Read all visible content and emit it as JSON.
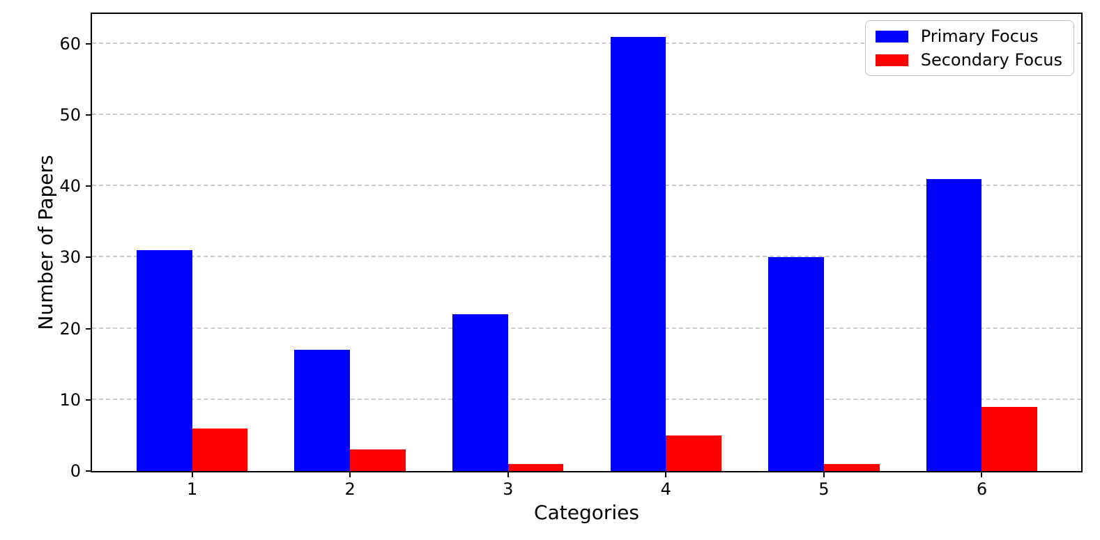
{
  "chart_data": {
    "type": "bar",
    "title": "",
    "xlabel": "Categories",
    "ylabel": "Number of Papers",
    "categories": [
      "1",
      "2",
      "3",
      "4",
      "5",
      "6"
    ],
    "series": [
      {
        "name": "Primary Focus",
        "color": "#0000ff",
        "values": [
          31,
          17,
          22,
          61,
          30,
          41
        ]
      },
      {
        "name": "Secondary Focus",
        "color": "#ff0000",
        "values": [
          6,
          3,
          1,
          5,
          1,
          9
        ]
      }
    ],
    "yticks": [
      0,
      10,
      20,
      30,
      40,
      50,
      60
    ],
    "ylim": [
      0,
      64.2
    ],
    "grid": "horizontal-dashed",
    "grid_color": "#cccccc",
    "axis_color": "#000000",
    "background_color": "#ffffff",
    "legend_position": "upper-right"
  }
}
